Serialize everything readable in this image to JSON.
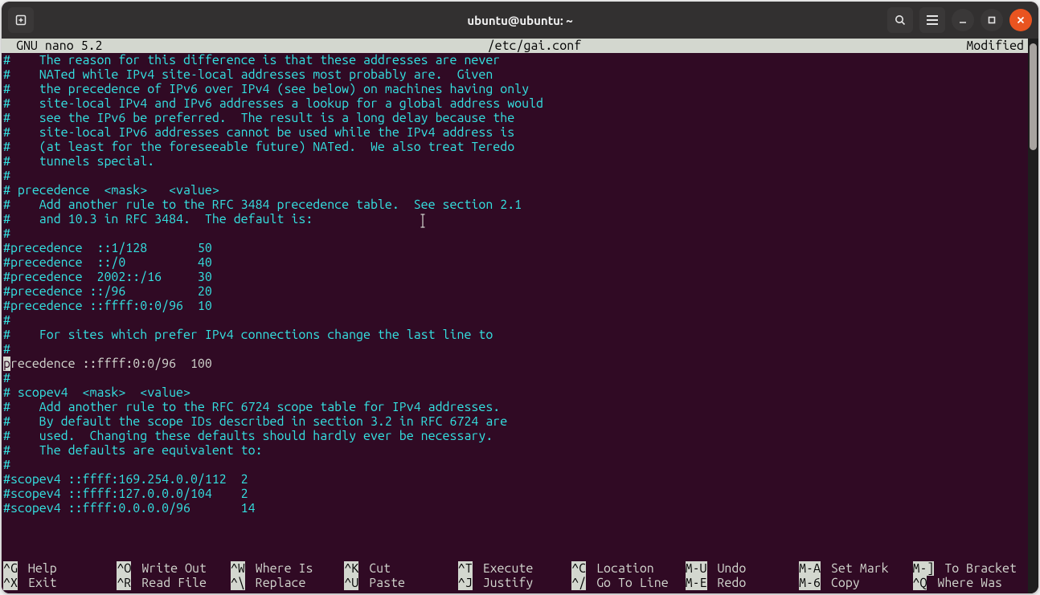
{
  "window": {
    "title": "ubuntu@ubuntu: ~"
  },
  "editor": {
    "app": "GNU nano 5.2",
    "file": "/etc/gai.conf",
    "status": "Modified"
  },
  "colors": {
    "terminal_bg": "#300a24",
    "titlebar_bg": "#323030",
    "cyan": "#34e2e2",
    "light": "#d3d7cf",
    "close": "#e95420"
  },
  "file_lines": [
    "#    The reason for this difference is that these addresses are never",
    "#    NATed while IPv4 site-local addresses most probably are.  Given",
    "#    the precedence of IPv6 over IPv4 (see below) on machines having only",
    "#    site-local IPv4 and IPv6 addresses a lookup for a global address would",
    "#    see the IPv6 be preferred.  The result is a long delay because the",
    "#    site-local IPv6 addresses cannot be used while the IPv4 address is",
    "#    (at least for the foreseeable future) NATed.  We also treat Teredo",
    "#    tunnels special.",
    "#",
    "# precedence  <mask>   <value>",
    "#    Add another rule to the RFC 3484 precedence table.  See section 2.1",
    "#    and 10.3 in RFC 3484.  The default is:",
    "#",
    "#precedence  ::1/128       50",
    "#precedence  ::/0          40",
    "#precedence  2002::/16     30",
    "#precedence ::/96          20",
    "#precedence ::ffff:0:0/96  10",
    "#",
    "#    For sites which prefer IPv4 connections change the last line to",
    "#",
    "precedence ::ffff:0:0/96  100",
    "",
    "#",
    "# scopev4  <mask>  <value>",
    "#    Add another rule to the RFC 6724 scope table for IPv4 addresses.",
    "#    By default the scope IDs described in section 3.2 in RFC 6724 are",
    "#    used.  Changing these defaults should hardly ever be necessary.",
    "#    The defaults are equivalent to:",
    "#",
    "#scopev4 ::ffff:169.254.0.0/112  2",
    "#scopev4 ::ffff:127.0.0.0/104    2",
    "#scopev4 ::ffff:0.0.0.0/96       14"
  ],
  "cursor_line_index": 21,
  "shortcuts": {
    "row1": [
      {
        "key": "^G",
        "label": "Help"
      },
      {
        "key": "^O",
        "label": "Write Out"
      },
      {
        "key": "^W",
        "label": "Where Is"
      },
      {
        "key": "^K",
        "label": "Cut"
      },
      {
        "key": "^T",
        "label": "Execute"
      },
      {
        "key": "^C",
        "label": "Location"
      },
      {
        "key": "M-U",
        "label": "Undo"
      },
      {
        "key": "M-A",
        "label": "Set Mark"
      },
      {
        "key": "M-]",
        "label": "To Bracket"
      }
    ],
    "row2": [
      {
        "key": "^X",
        "label": "Exit"
      },
      {
        "key": "^R",
        "label": "Read File"
      },
      {
        "key": "^\\",
        "label": "Replace"
      },
      {
        "key": "^U",
        "label": "Paste"
      },
      {
        "key": "^J",
        "label": "Justify"
      },
      {
        "key": "^/",
        "label": "Go To Line"
      },
      {
        "key": "M-E",
        "label": "Redo"
      },
      {
        "key": "M-6",
        "label": "Copy"
      },
      {
        "key": "^Q",
        "label": "Where Was"
      }
    ]
  }
}
